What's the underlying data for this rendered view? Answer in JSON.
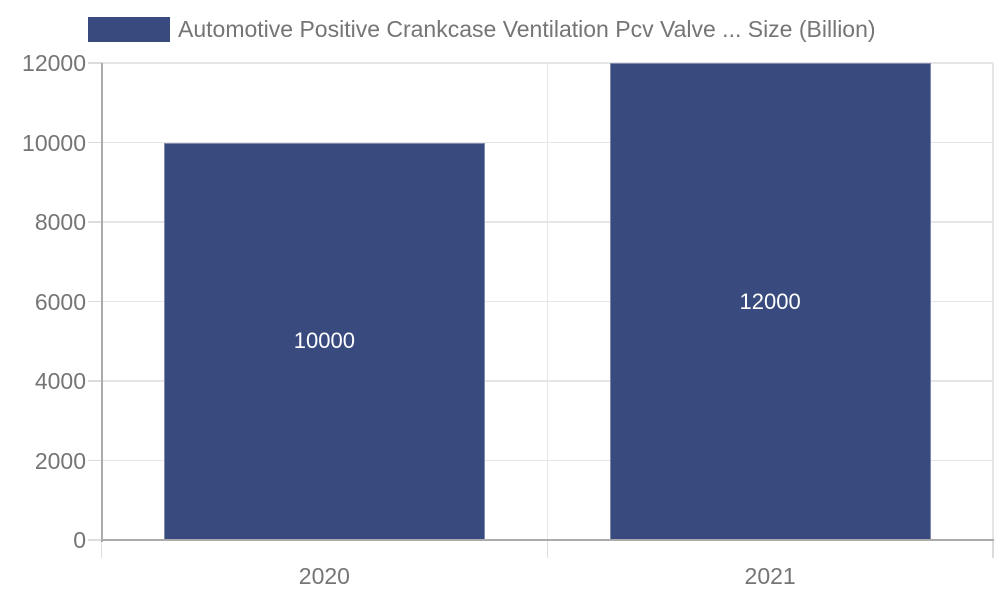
{
  "colors": {
    "background": "#ffffff",
    "bar": "#394A7E",
    "grid": "#e6e6e6",
    "axis": "#ababab",
    "tick": "#dcdcdc",
    "text_gray": "#757575",
    "bar_label": "#ffffff"
  },
  "legend": {
    "label": "Automotive Positive Crankcase Ventilation Pcv Valve ... Size (Billion)"
  },
  "chart_data": {
    "type": "bar",
    "categories": [
      "2020",
      "2021"
    ],
    "values": [
      10000,
      12000
    ],
    "series": [
      {
        "name": "Automotive Positive Crankcase Ventilation Pcv Valve ... Size (Billion)",
        "values": [
          10000,
          12000
        ]
      }
    ],
    "bar_labels": [
      "10000",
      "12000"
    ],
    "title": "",
    "xlabel": "",
    "ylabel": "",
    "ylim": [
      0,
      12000
    ],
    "ytick_interval": 2000,
    "yticks": [
      0,
      2000,
      4000,
      6000,
      8000,
      10000,
      12000
    ],
    "ytick_labels": [
      "0",
      "2000",
      "4000",
      "6000",
      "8000",
      "10000",
      "12000"
    ],
    "grid": true,
    "legend_position": "top-left"
  }
}
